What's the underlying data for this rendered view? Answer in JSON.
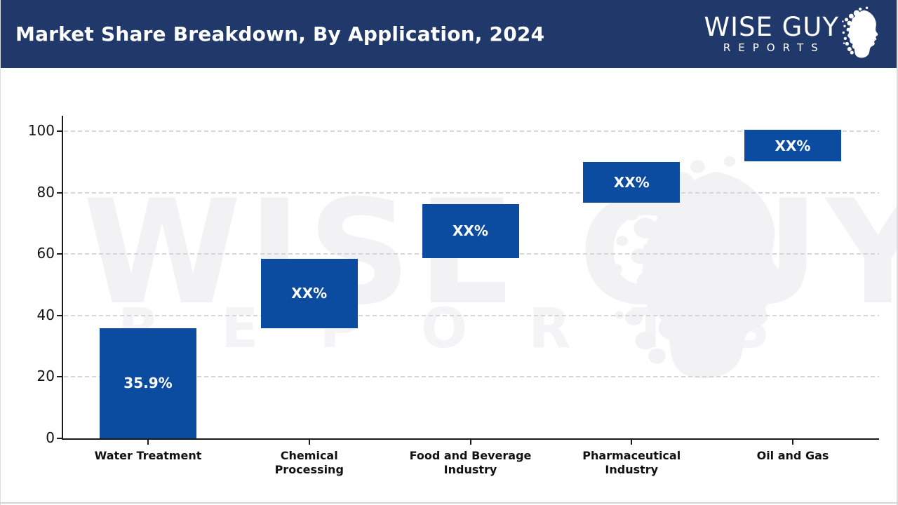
{
  "header": {
    "title": "Market Share Breakdown, By Application, 2024",
    "bg_color": "#20386a",
    "logo": {
      "primary": "WISE GUY",
      "secondary": "REPORTS"
    }
  },
  "watermark": {
    "primary": "WISE GUY",
    "secondary": "R E P O R T S"
  },
  "chart_data": {
    "type": "bar",
    "variant": "waterfall",
    "title": "Market Share Breakdown, By Application, 2024",
    "categories": [
      "Water Treatment",
      "Chemical Processing",
      "Food and Beverage Industry",
      "Pharmaceutical Industry",
      "Oil and Gas"
    ],
    "category_label_lines": [
      [
        "Water Treatment"
      ],
      [
        "Chemical",
        "Processing"
      ],
      [
        "Food and Beverage",
        "Industry"
      ],
      [
        "Pharmaceutical",
        "Industry"
      ],
      [
        "Oil and Gas"
      ]
    ],
    "segments": [
      {
        "category": "Water Treatment",
        "start": 0,
        "end": 35.9,
        "label": "35.9%"
      },
      {
        "category": "Chemical Processing",
        "start": 35.9,
        "end": 58.4,
        "label": "XX%"
      },
      {
        "category": "Food and Beverage Industry",
        "start": 58.7,
        "end": 76.3,
        "label": "XX%"
      },
      {
        "category": "Pharmaceutical Industry",
        "start": 76.6,
        "end": 90.0,
        "label": "XX%"
      },
      {
        "category": "Oil and Gas",
        "start": 90.2,
        "end": 100.4,
        "label": "XX%"
      }
    ],
    "y_ticks": [
      0,
      20,
      40,
      60,
      80,
      100
    ],
    "ylim": [
      0,
      105
    ],
    "bar_color": "#0b4ba0",
    "grid": "horizontal-dashed",
    "legend": null
  }
}
